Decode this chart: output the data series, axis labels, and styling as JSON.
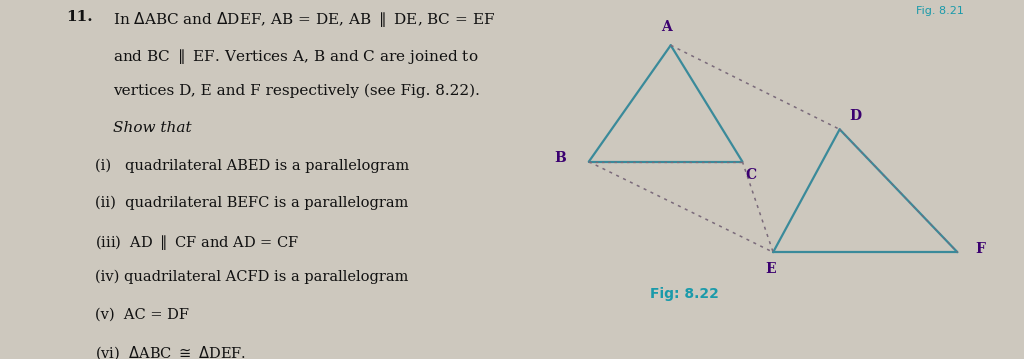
{
  "background_color": "#cdc8be",
  "fig_width": 10.24,
  "fig_height": 3.59,
  "fig_label": "Fig: 8.22",
  "fig_label_color": "#1a9aaa",
  "fig_label_size": 10,
  "fig821_color": "#1a9aaa",
  "triangle_color": "#3a8a9a",
  "label_color": "#3a0070",
  "dotted_color": "#7a6a7a",
  "triangle_ABC": {
    "A": [
      0.655,
      0.86
    ],
    "B": [
      0.575,
      0.5
    ],
    "C": [
      0.725,
      0.5
    ]
  },
  "triangle_DEF": {
    "D": [
      0.82,
      0.6
    ],
    "E": [
      0.755,
      0.22
    ],
    "F": [
      0.935,
      0.22
    ]
  }
}
